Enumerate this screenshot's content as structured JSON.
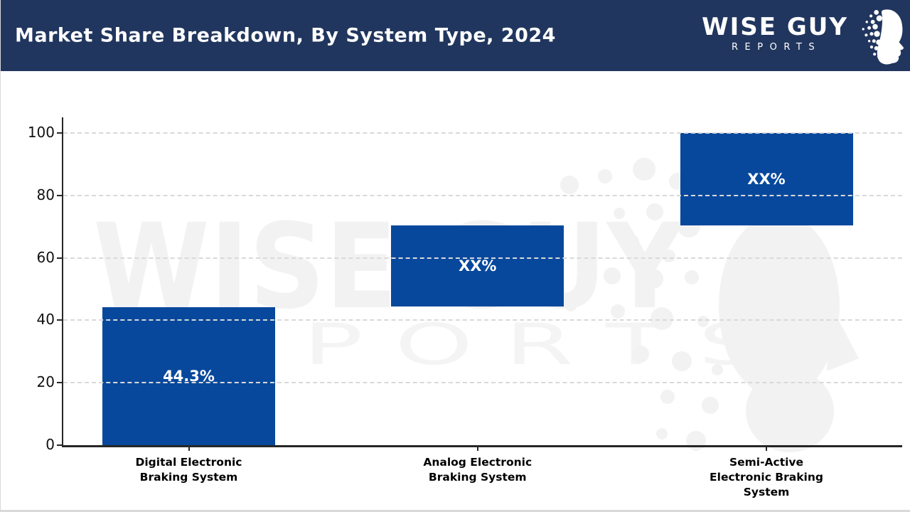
{
  "header": {
    "title": "Market Share Breakdown, By System Type, 2024",
    "bg_color": "#21365e",
    "logo": {
      "line1": "WISE GUY",
      "line2": "REPORTS"
    }
  },
  "watermark": {
    "line1": "WISE GUY",
    "line2": "R E P O R T S"
  },
  "chart_data": {
    "type": "bar",
    "subtype": "floating-waterfall",
    "title": "Market Share Breakdown, By System Type, 2024",
    "categories": [
      "Digital Electronic\nBraking System",
      "Analog Electronic\nBraking System",
      "Semi-Active\nElectronic Braking\nSystem"
    ],
    "bars": [
      {
        "start": 0,
        "end": 44.3,
        "label": "44.3%"
      },
      {
        "start": 44.3,
        "end": 70.4,
        "label": "XX%"
      },
      {
        "start": 70.4,
        "end": 100,
        "label": "XX%"
      }
    ],
    "yticks": [
      0,
      20,
      40,
      60,
      80,
      100
    ],
    "ylim": [
      0,
      105
    ],
    "xlabel": "",
    "ylabel": "",
    "grid": "horizontal-dashed",
    "legend": "none",
    "bar_color": "#07489c",
    "bar_label_color": "#ffffff",
    "axis_color": "#262626"
  }
}
